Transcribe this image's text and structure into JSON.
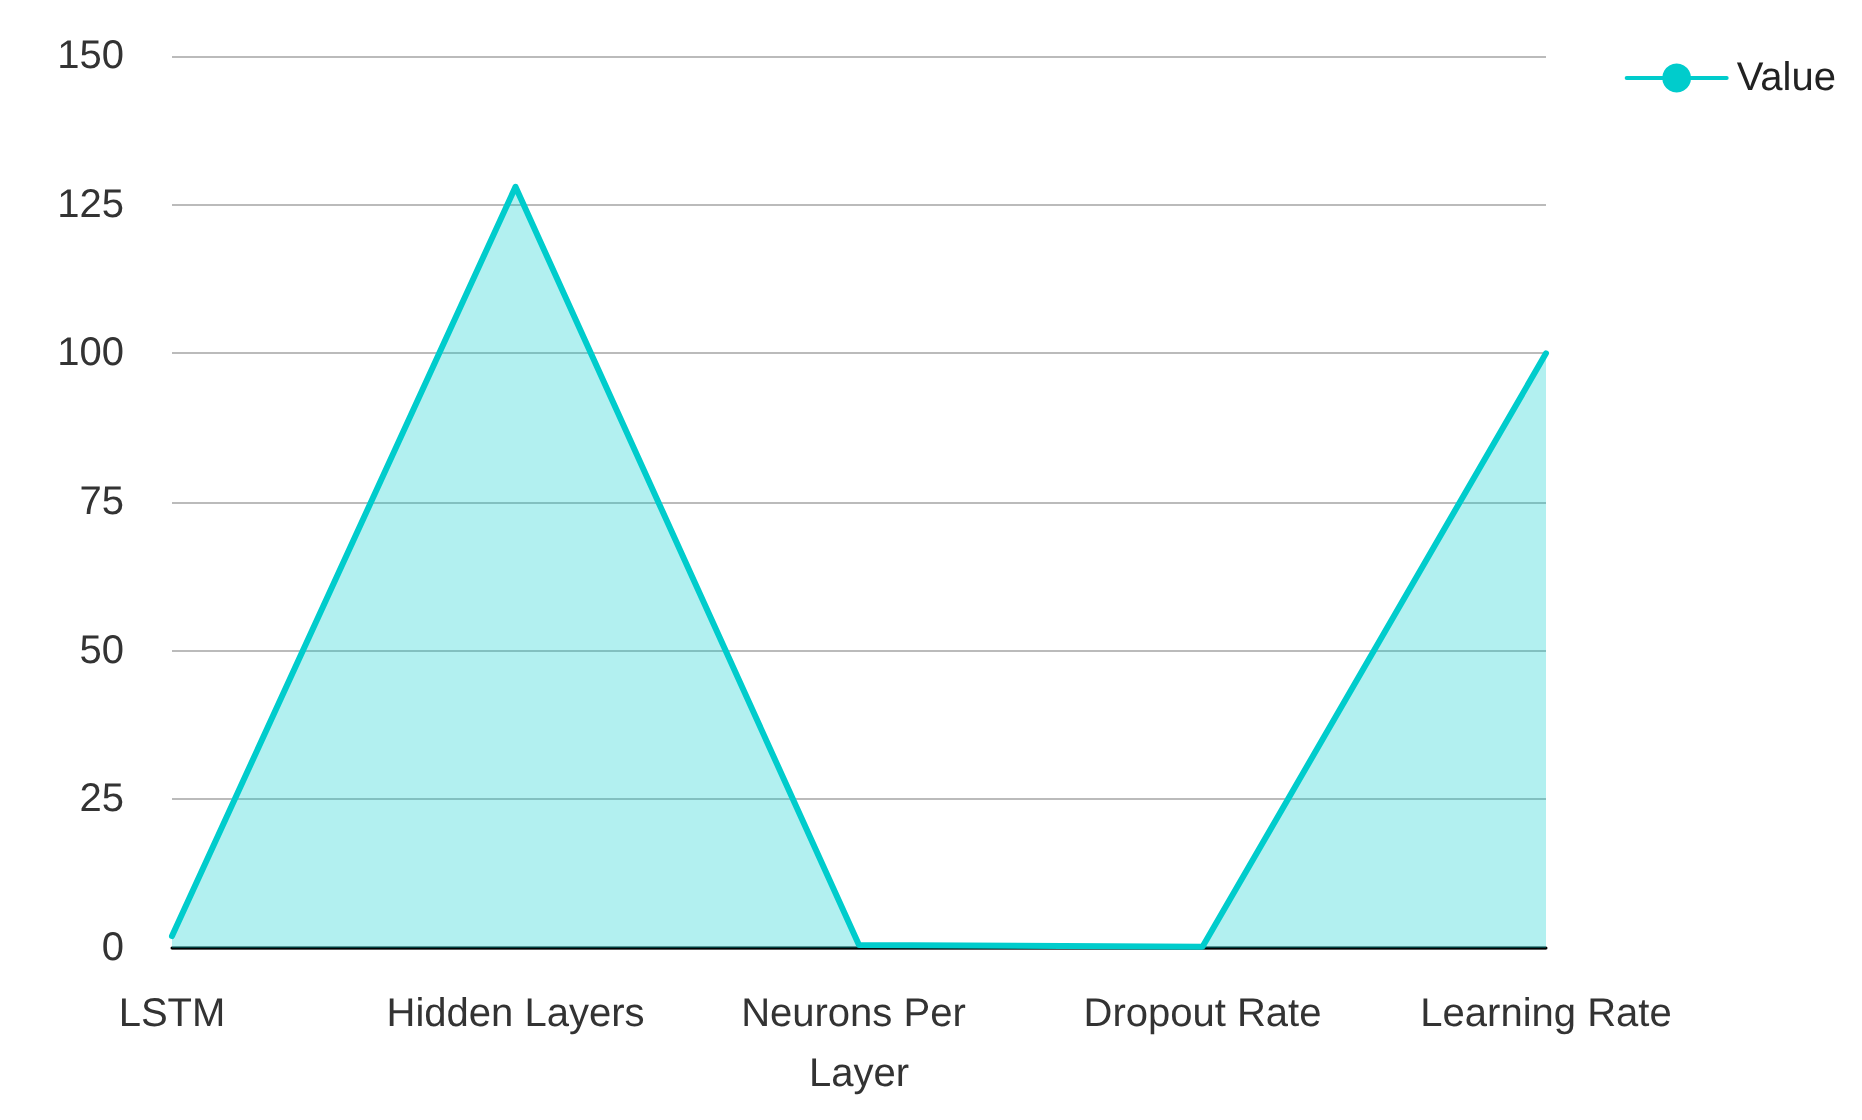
{
  "chart_data": {
    "type": "area",
    "categories": [
      "LSTM",
      "Hidden Layers",
      "Neurons Per Layer",
      "Dropout Rate",
      "Learning Rate"
    ],
    "series": [
      {
        "name": "Value",
        "color": "#00cccc",
        "values": [
          2,
          128,
          0.5,
          0.2,
          100
        ]
      }
    ],
    "ylim": [
      0,
      150
    ],
    "yticks": [
      0,
      25,
      50,
      75,
      100,
      125,
      150
    ],
    "grid": "y",
    "legend": "top right",
    "marker": "none",
    "line_style": "solid"
  }
}
